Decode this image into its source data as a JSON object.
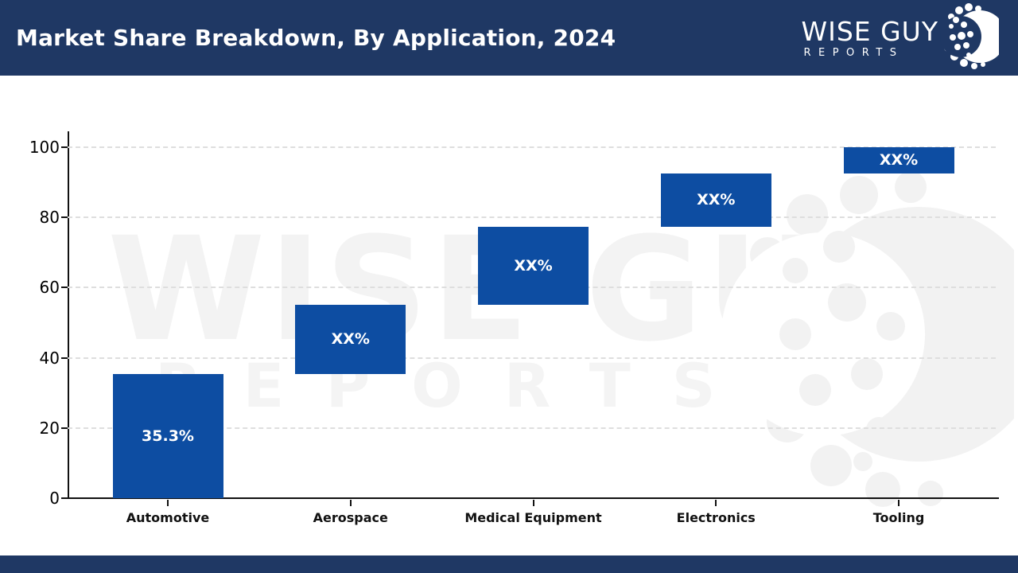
{
  "header": {
    "title": "Market Share Breakdown, By Application, 2024",
    "bg_color": "#1f3864",
    "logo": {
      "line1": "WISE GUY",
      "line2": "REPORTS"
    }
  },
  "watermark": {
    "line1": "WISE GUY",
    "line2": "REPORTS"
  },
  "chart_data": {
    "type": "bar",
    "subtype": "waterfall",
    "title": "Market Share Breakdown, By Application, 2024",
    "categories": [
      "Automotive",
      "Aerospace",
      "Medical Equipment",
      "Electronics",
      "Tooling"
    ],
    "series": [
      {
        "name": "Market share (%)",
        "segments": [
          {
            "category": "Automotive",
            "start": 0,
            "end": 35.3,
            "label": "35.3%"
          },
          {
            "category": "Aerospace",
            "start": 35.3,
            "end": 55,
            "label": "XX%"
          },
          {
            "category": "Medical Equipment",
            "start": 55,
            "end": 77.3,
            "label": "XX%"
          },
          {
            "category": "Electronics",
            "start": 77.3,
            "end": 92.5,
            "label": "XX%"
          },
          {
            "category": "Tooling",
            "start": 92.5,
            "end": 100,
            "label": "XX%"
          }
        ]
      }
    ],
    "ylim": [
      0,
      100
    ],
    "yticks": [
      0,
      20,
      40,
      60,
      80,
      100
    ],
    "xlabel": "",
    "ylabel": "",
    "legend": "none",
    "grid": "horizontal-dashed",
    "bar_color": "#0d4da2",
    "bar_label_color": "#ffffff",
    "axis_color": "#111111",
    "gridline_color": "#dedede"
  }
}
